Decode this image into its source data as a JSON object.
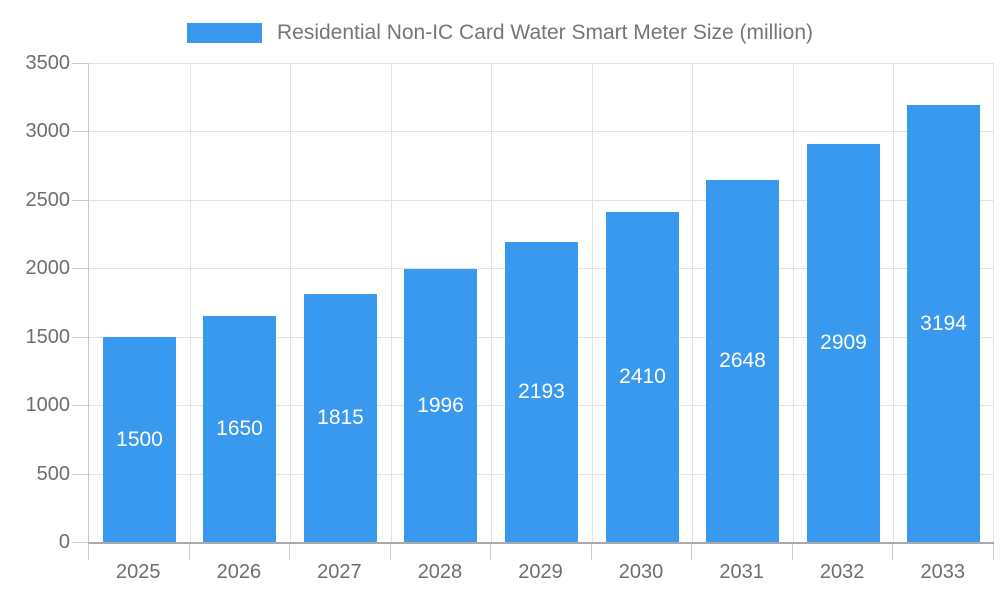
{
  "legend": {
    "label": "Residential Non-IC Card Water Smart Meter Size (million)"
  },
  "chart_data": {
    "type": "bar",
    "title": "Residential Non-IC Card Water Smart Meter Size (million)",
    "series_name": "Residential Non-IC Card Water Smart Meter Size (million)",
    "categories": [
      "2025",
      "2026",
      "2027",
      "2028",
      "2029",
      "2030",
      "2031",
      "2032",
      "2033"
    ],
    "values": [
      1500,
      1650,
      1815,
      1996,
      2193,
      2410,
      2648,
      2909,
      3194
    ],
    "xlabel": "",
    "ylabel": "",
    "ylim": [
      0,
      3500
    ],
    "yticks": [
      0,
      500,
      1000,
      1500,
      2000,
      2500,
      3000,
      3500
    ],
    "grid": true,
    "legend_position": "top",
    "bar_color": "#3899EE",
    "value_label_color": "#FFFFFF",
    "axis_text_color": "#6E6E6E",
    "legend_text_color": "#757575",
    "gridline_color": "#E2E2E2",
    "axis_line_color": "#A9A9A9"
  }
}
